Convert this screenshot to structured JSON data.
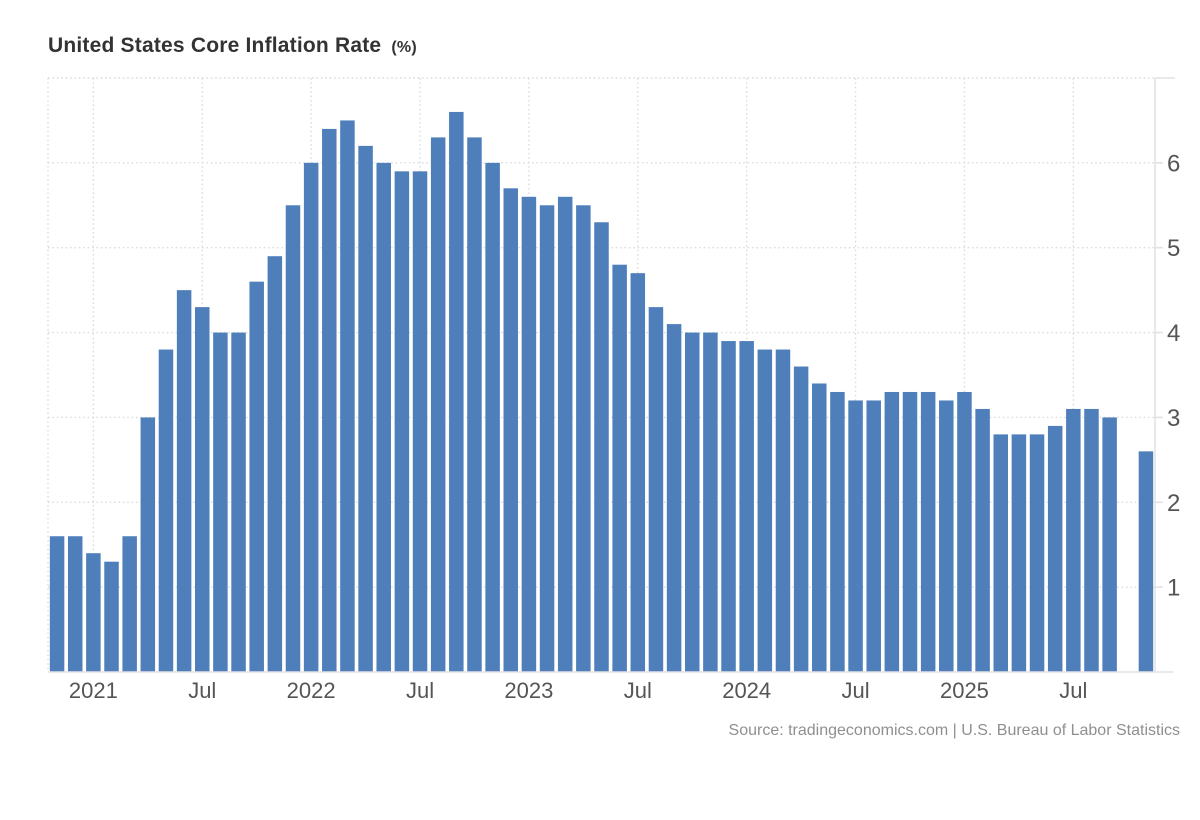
{
  "chart": {
    "title": "United States Core Inflation Rate",
    "title_suffix": "(%)"
  },
  "footer": {
    "source": "Source: tradingeconomics.com | U.S. Bureau of Labor Statistics"
  },
  "chart_data": {
    "type": "bar",
    "title": "United States Core Inflation Rate (%)",
    "xlabel": "",
    "ylabel": "",
    "ylim": [
      0,
      7
    ],
    "y_axis_side": "right",
    "grid": "dotted",
    "legend_position": "none",
    "bar_color": "#4e7fbb",
    "grid_color": "#dcdcdc",
    "axis_color": "#e2e2e2",
    "label_color": "#555555",
    "categories": [
      "2020-11",
      "2020-12",
      "2021-01",
      "2021-02",
      "2021-03",
      "2021-04",
      "2021-05",
      "2021-06",
      "2021-07",
      "2021-08",
      "2021-09",
      "2021-10",
      "2021-11",
      "2021-12",
      "2022-01",
      "2022-02",
      "2022-03",
      "2022-04",
      "2022-05",
      "2022-06",
      "2022-07",
      "2022-08",
      "2022-09",
      "2022-10",
      "2022-11",
      "2022-12",
      "2023-01",
      "2023-02",
      "2023-03",
      "2023-04",
      "2023-05",
      "2023-06",
      "2023-07",
      "2023-08",
      "2023-09",
      "2023-10",
      "2023-11",
      "2023-12",
      "2024-01",
      "2024-02",
      "2024-03",
      "2024-04",
      "2024-05",
      "2024-06",
      "2024-07",
      "2024-08",
      "2024-09",
      "2024-10",
      "2024-11",
      "2024-12",
      "2025-01",
      "2025-02",
      "2025-03",
      "2025-04",
      "2025-05",
      "2025-06",
      "2025-07",
      "2025-08",
      "2025-09",
      "2025-10",
      "2025-11"
    ],
    "values": [
      1.6,
      1.6,
      1.4,
      1.3,
      1.6,
      3.0,
      3.8,
      4.5,
      4.3,
      4.0,
      4.0,
      4.6,
      4.9,
      5.5,
      6.0,
      6.4,
      6.5,
      6.2,
      6.0,
      5.9,
      5.9,
      6.3,
      6.6,
      6.3,
      6.0,
      5.7,
      5.6,
      5.5,
      5.6,
      5.5,
      5.3,
      4.8,
      4.7,
      4.3,
      4.1,
      4.0,
      4.0,
      3.9,
      3.9,
      3.8,
      3.8,
      3.6,
      3.4,
      3.3,
      3.2,
      3.2,
      3.3,
      3.3,
      3.3,
      3.2,
      3.3,
      3.1,
      2.8,
      2.8,
      2.8,
      2.9,
      3.1,
      3.1,
      3.0,
      null,
      2.6
    ],
    "missing_months": [
      "2025-10"
    ],
    "x_ticks": [
      {
        "index": 2,
        "label": "2021"
      },
      {
        "index": 8,
        "label": "Jul"
      },
      {
        "index": 14,
        "label": "2022"
      },
      {
        "index": 20,
        "label": "Jul"
      },
      {
        "index": 26,
        "label": "2023"
      },
      {
        "index": 32,
        "label": "Jul"
      },
      {
        "index": 38,
        "label": "2024"
      },
      {
        "index": 44,
        "label": "Jul"
      },
      {
        "index": 50,
        "label": "2025"
      },
      {
        "index": 56,
        "label": "Jul"
      }
    ],
    "y_ticks": [
      1,
      2,
      3,
      4,
      5,
      6
    ]
  }
}
